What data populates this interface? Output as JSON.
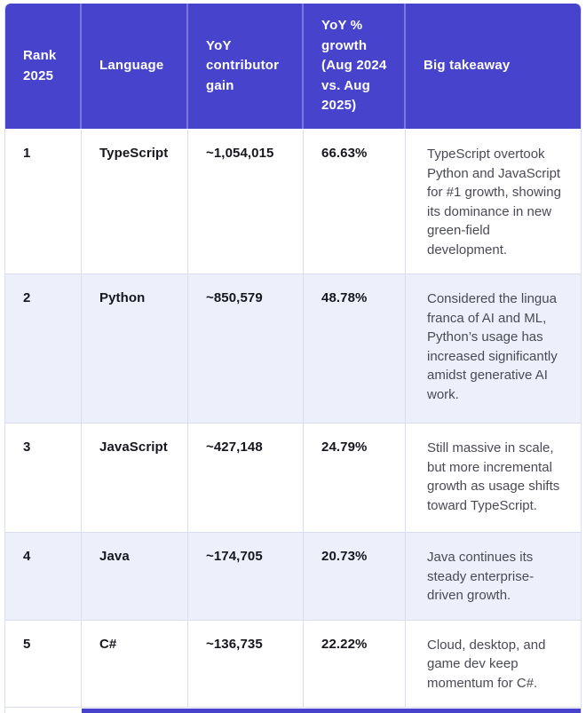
{
  "chart_data": {
    "type": "table",
    "columns": [
      "Rank 2025",
      "Language",
      "YoY contributor gain",
      "YoY % growth (Aug 2024 vs. Aug 2025)",
      "Big takeaway"
    ],
    "rows": [
      {
        "rank": "1",
        "language": "TypeScript",
        "gain": "~1,054,015",
        "growth": "66.63%",
        "takeaway": "TypeScript overtook Python and JavaScript for #1 growth, showing its dominance in new green-field development."
      },
      {
        "rank": "2",
        "language": "Python",
        "gain": "~850,579",
        "growth": "48.78%",
        "takeaway": "Considered the lingua franca of AI and ML, Python’s usage has increased significantly amidst generative AI work."
      },
      {
        "rank": "3",
        "language": "JavaScript",
        "gain": "~427,148",
        "growth": "24.79%",
        "takeaway": "Still massive in scale, but more incremental growth as usage shifts toward TypeScript."
      },
      {
        "rank": "4",
        "language": "Java",
        "gain": "~174,705",
        "growth": "20.73%",
        "takeaway": "Java continues its steady enterprise-driven growth."
      },
      {
        "rank": "5",
        "language": "C#",
        "gain": "~136,735",
        "growth": "22.22%",
        "takeaway": "Cloud, desktop, and game dev keep momentum for C#."
      }
    ]
  },
  "colors": {
    "header_bg": "#4843cd",
    "alt_row_bg": "#edf0fa",
    "border": "#dadcf0",
    "body_text": "#16161e",
    "takeaway_text": "#4a4a55"
  }
}
